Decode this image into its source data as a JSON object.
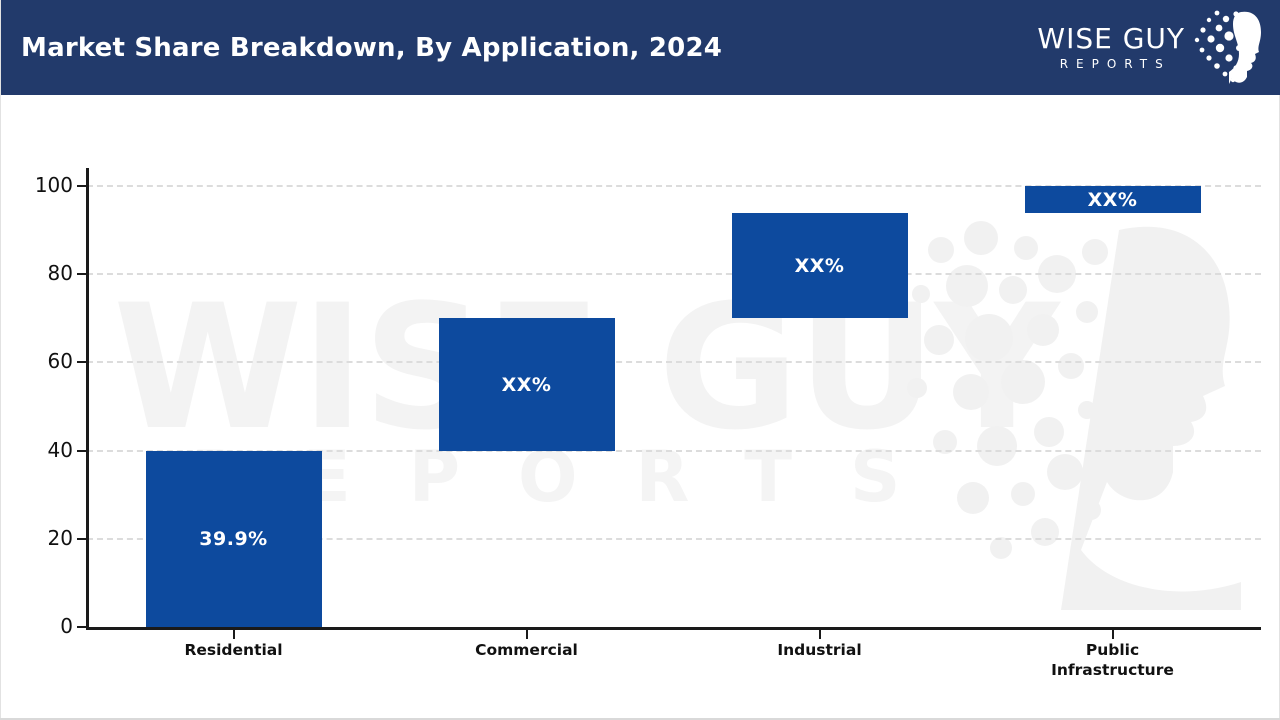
{
  "header": {
    "title": "Market Share Breakdown, By Application, 2024",
    "logo": {
      "name": "WISE GUY",
      "subname": "REPORTS"
    }
  },
  "watermark": {
    "line1": "WISE GUY",
    "line2": "REPORTS"
  },
  "chart_data": {
    "type": "bar",
    "subtype": "stacked-breakdown-waterfall",
    "title": "Market Share Breakdown, By Application, 2024",
    "categories": [
      "Residential",
      "Commercial",
      "Industrial",
      "Public Infrastructure"
    ],
    "segments": [
      {
        "category": "Residential",
        "start": 0,
        "end": 39.9,
        "label": "39.9%"
      },
      {
        "category": "Commercial",
        "start": 39.9,
        "end": 70,
        "label": "XX%"
      },
      {
        "category": "Industrial",
        "start": 70,
        "end": 93.8,
        "label": "XX%"
      },
      {
        "category": "Public Infrastructure",
        "start": 93.8,
        "end": 100,
        "label": "XX%"
      }
    ],
    "xlabel": "",
    "ylabel": "",
    "ylim": [
      0,
      100
    ],
    "yticks": [
      0,
      20,
      40,
      60,
      80,
      100
    ],
    "grid": "dashed-horizontal",
    "legend": "none",
    "bar_color": "#0d4a9e",
    "bar_label_color": "#ffffff"
  },
  "colors": {
    "header_bg": "#223a6b",
    "bar": "#0d4a9e",
    "grid": "#dcdcdc",
    "axis": "#1a1a1a",
    "watermark": "#f3f3f3"
  }
}
